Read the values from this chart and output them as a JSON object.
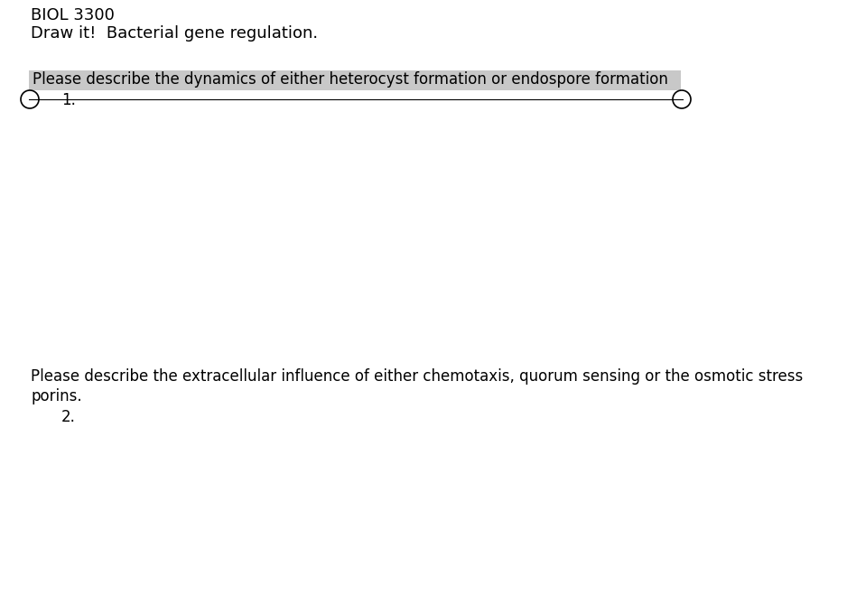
{
  "title_line1": "BIOL 3300",
  "title_line2": "Draw it!  Bacterial gene regulation.",
  "section1_prompt": "Please describe the dynamics of either heterocyst formation or endospore formation",
  "section1_label": "1.",
  "section2_prompt_line1": "Please describe the extracellular influence of either chemotaxis, quorum sensing or the osmotic stress",
  "section2_prompt_line2": "porins.",
  "section2_label": "2.",
  "bg_color": "#ffffff",
  "highlight_color": "#c8c8c8",
  "text_color": "#000000",
  "font_family": "DejaVu Sans",
  "title_fontsize": 13,
  "body_fontsize": 12,
  "label_fontsize": 12,
  "fig_width": 9.38,
  "fig_height": 6.69,
  "dpi": 100
}
